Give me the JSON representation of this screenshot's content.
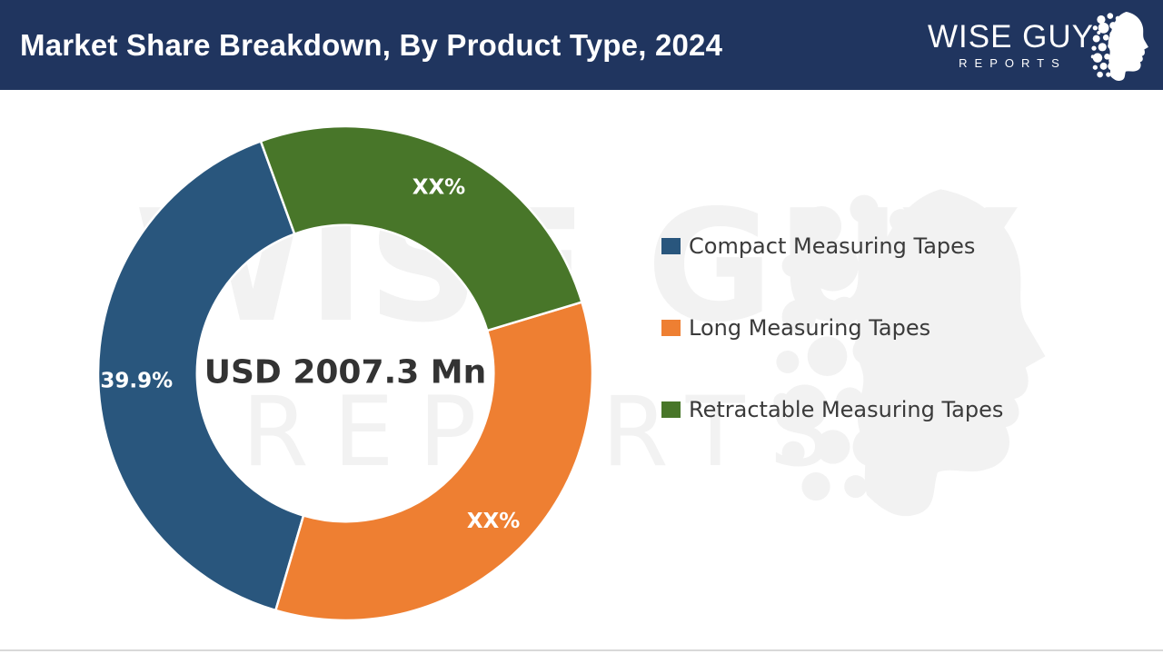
{
  "header": {
    "title": "Market Share Breakdown, By Product Type, 2024",
    "background_color": "#20355f",
    "logo": {
      "name": "WISE GUY",
      "tagline": "REPORTS"
    }
  },
  "watermark": {
    "name": "WISE GUY",
    "tagline": "REPORTS"
  },
  "chart_data": {
    "type": "pie",
    "variant": "donut",
    "title": "Market Share Breakdown, By Product Type, 2024",
    "center_label": "USD 2007.3 Mn",
    "series": [
      {
        "name": "Compact Measuring Tapes",
        "display_label": "39.9%",
        "value": 39.9,
        "color": "#29567d"
      },
      {
        "name": "Long Measuring Tapes",
        "display_label": "XX%",
        "value": 34.2,
        "color": "#ee7f32"
      },
      {
        "name": "Retractable Measuring Tapes",
        "display_label": "XX%",
        "value": 25.9,
        "color": "#487629"
      }
    ],
    "xx_values_estimated_from_angles": true,
    "legend_position": "right",
    "start_angle_deg": 110,
    "counterclock": true,
    "inner_radius_ratio": 0.6,
    "label_radius_ratio": 0.845,
    "slice_separator_color": "#ffffff",
    "slice_label_color": "#ffffff",
    "center_label_color": "#333333"
  },
  "footer": {
    "divider_color": "#d9d9d9"
  }
}
